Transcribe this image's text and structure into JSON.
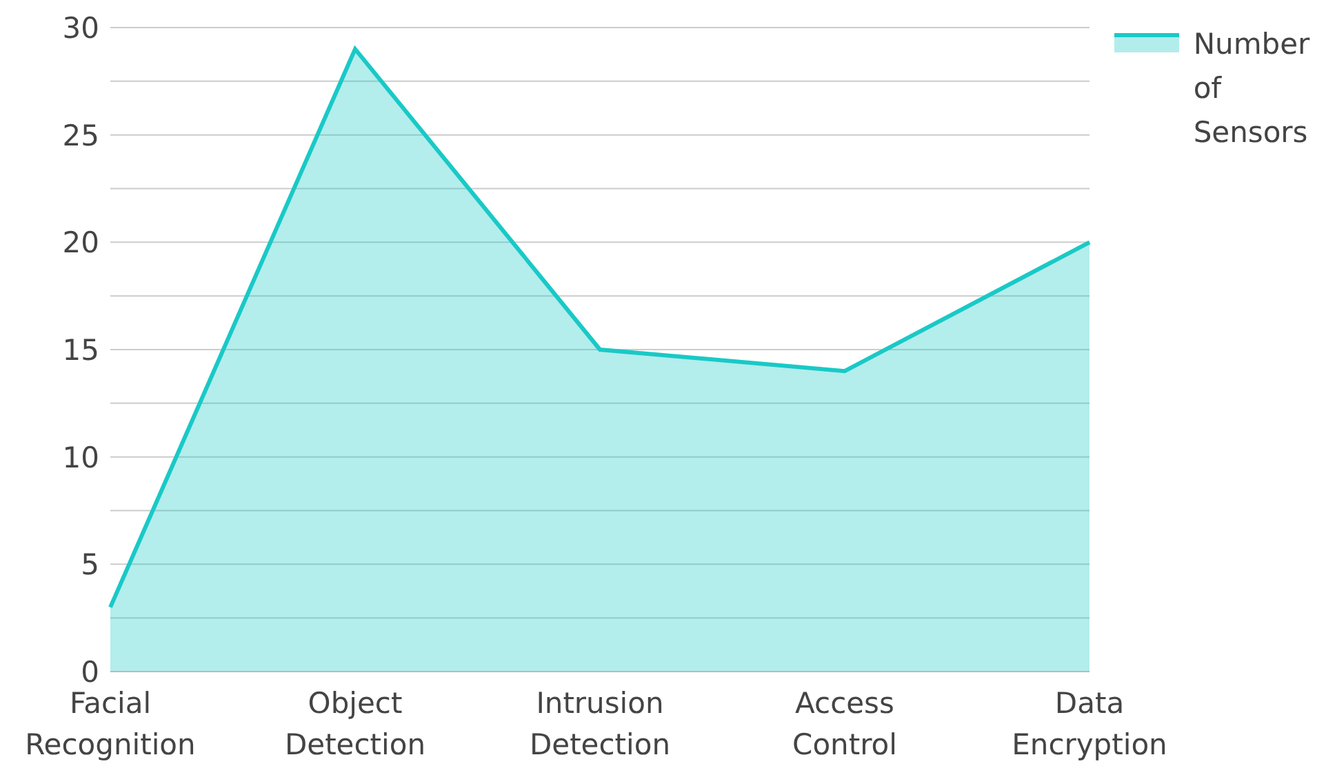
{
  "chart_data": {
    "type": "area",
    "categories": [
      "Facial Recognition",
      "Object Detection",
      "Intrusion Detection",
      "Access Control",
      "Data Encryption"
    ],
    "series": [
      {
        "name": "Number of Sensors",
        "color": "#19c9c6",
        "values": [
          3,
          29,
          15,
          14,
          20
        ]
      }
    ],
    "ylim": [
      0,
      30
    ],
    "yticks": [
      0,
      {
        "value": 2.5,
        "label": null
      },
      5,
      {
        "value": 7.5,
        "label": null
      },
      10,
      {
        "value": 12.5,
        "label": null
      },
      15,
      {
        "value": 17.5,
        "label": null
      },
      20,
      {
        "value": 22.5,
        "label": null
      },
      25,
      {
        "value": 27.5,
        "label": null
      },
      30
    ],
    "grid": "y",
    "legend": "top right",
    "marker": "none"
  }
}
